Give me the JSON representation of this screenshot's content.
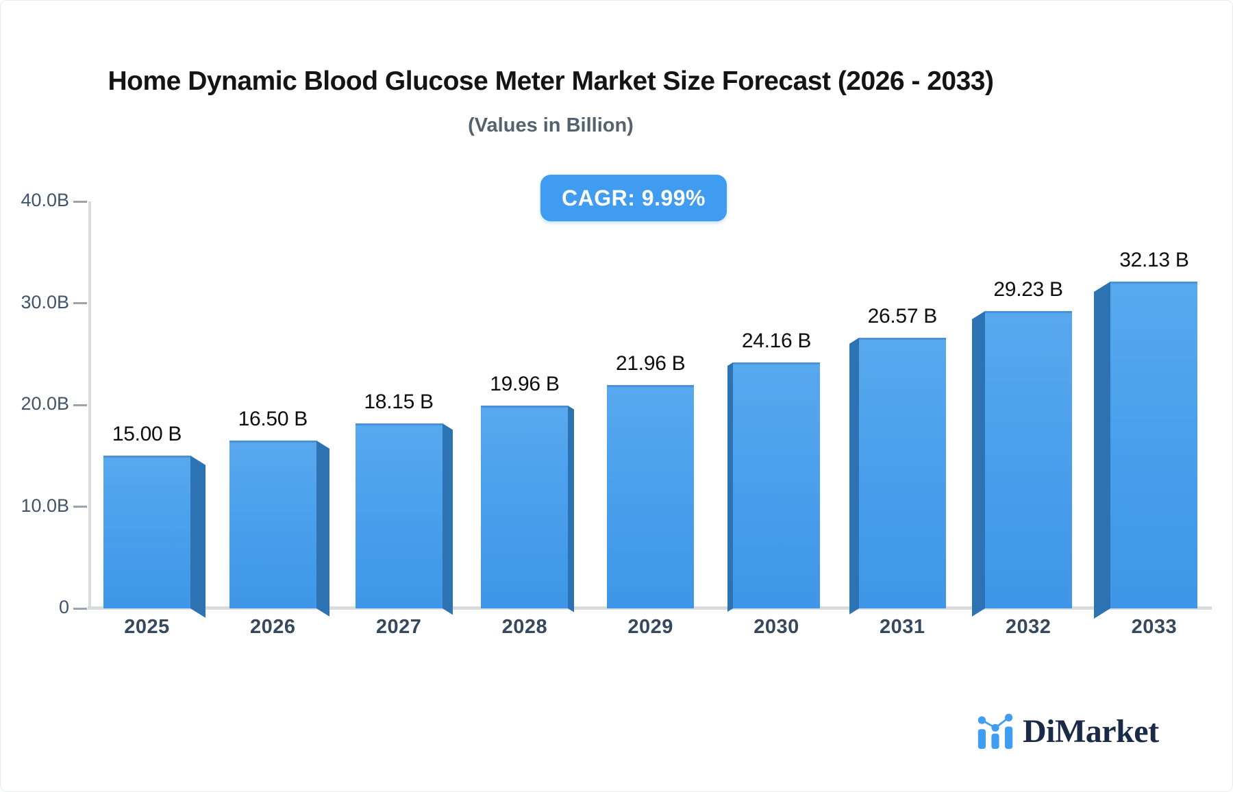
{
  "header": {
    "title": "Home Dynamic Blood Glucose Meter Market Size Forecast (2026 - 2033)",
    "subtitle": "(Values in Billion)",
    "cagr_badge": "CAGR: 9.99%"
  },
  "chart_data": {
    "type": "bar",
    "title": "Home Dynamic Blood Glucose Meter Market Size Forecast (2026 - 2033)",
    "subtitle": "(Values in Billion)",
    "cagr_percent": 9.99,
    "categories": [
      "2025",
      "2026",
      "2027",
      "2028",
      "2029",
      "2030",
      "2031",
      "2032",
      "2033"
    ],
    "values": [
      15.0,
      16.5,
      18.15,
      19.96,
      21.96,
      24.16,
      26.57,
      29.23,
      32.13
    ],
    "value_labels": [
      "15.00 B",
      "16.50 B",
      "18.15 B",
      "19.96 B",
      "21.96 B",
      "24.16 B",
      "26.57 B",
      "29.23 B",
      "32.13 B"
    ],
    "unit": "Billion",
    "ylim": [
      0,
      40
    ],
    "y_ticks": [
      {
        "value": 40,
        "label": "40.0B"
      },
      {
        "value": 30,
        "label": "30.0B"
      },
      {
        "value": 20,
        "label": "20.0B"
      },
      {
        "value": 10,
        "label": "10.0B"
      },
      {
        "value": 0,
        "label": "0"
      }
    ],
    "grid": false,
    "legend": false,
    "style": "3d-perspective-bars",
    "colors": {
      "bar_face_top": "#58a8ee",
      "bar_face_bottom": "#3f96e8",
      "bar_side": "#2d72b2",
      "badge_background": "#3f9cf0",
      "badge_text": "#ffffff",
      "axis_line": "#d9dcdf",
      "axis_text": "#42546b",
      "value_text": "#0d0d0d"
    }
  },
  "footer": {
    "brand": "DiMarket",
    "logo_icon": "bar-line-chart-icon"
  }
}
